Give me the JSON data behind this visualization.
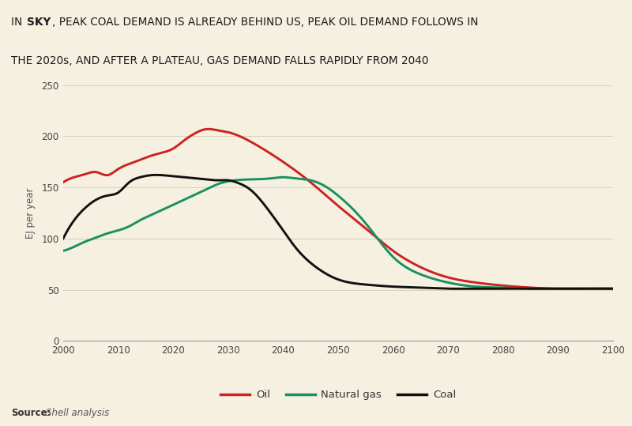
{
  "ylabel": "EJ per year",
  "source_bold": "Source:",
  "source_rest": " Shell analysis",
  "background_color": "#f5f0e0",
  "title_bg_color": "#f0d000",
  "title_text_color": "#1a1a1a",
  "oil_color": "#cc2222",
  "gas_color": "#1a9060",
  "coal_color": "#111111",
  "xlim": [
    2000,
    2100
  ],
  "ylim": [
    0,
    250
  ],
  "yticks": [
    0,
    50,
    100,
    150,
    200,
    250
  ],
  "xticks": [
    2000,
    2010,
    2020,
    2030,
    2040,
    2050,
    2060,
    2070,
    2080,
    2090,
    2100
  ],
  "oil_x": [
    2000,
    2002,
    2004,
    2006,
    2008,
    2010,
    2012,
    2014,
    2016,
    2018,
    2020,
    2022,
    2024,
    2026,
    2028,
    2030,
    2035,
    2040,
    2045,
    2050,
    2055,
    2060,
    2065,
    2070,
    2075,
    2080,
    2085,
    2090,
    2095,
    2100
  ],
  "oil_y": [
    155,
    160,
    163,
    165,
    162,
    168,
    173,
    177,
    181,
    184,
    188,
    196,
    203,
    207,
    206,
    204,
    192,
    175,
    155,
    132,
    110,
    88,
    72,
    62,
    57,
    54,
    52,
    51,
    51,
    51
  ],
  "gas_x": [
    2000,
    2002,
    2004,
    2006,
    2008,
    2010,
    2012,
    2014,
    2016,
    2018,
    2020,
    2022,
    2024,
    2026,
    2028,
    2030,
    2035,
    2038,
    2040,
    2042,
    2045,
    2048,
    2050,
    2055,
    2060,
    2065,
    2070,
    2075,
    2080,
    2085,
    2090,
    2095,
    2100
  ],
  "gas_y": [
    88,
    92,
    97,
    101,
    105,
    108,
    112,
    118,
    123,
    128,
    133,
    138,
    143,
    148,
    153,
    156,
    158,
    159,
    160,
    159,
    157,
    150,
    142,
    115,
    82,
    65,
    57,
    53,
    52,
    51,
    51,
    51,
    51
  ],
  "coal_x": [
    2000,
    2002,
    2004,
    2006,
    2008,
    2010,
    2012,
    2014,
    2016,
    2018,
    2020,
    2022,
    2024,
    2026,
    2028,
    2030,
    2032,
    2034,
    2036,
    2038,
    2040,
    2042,
    2044,
    2046,
    2048,
    2050,
    2055,
    2060,
    2065,
    2070,
    2075,
    2080,
    2085,
    2090,
    2095,
    2100
  ],
  "coal_y": [
    100,
    118,
    130,
    138,
    142,
    145,
    155,
    160,
    162,
    162,
    161,
    160,
    159,
    158,
    157,
    157,
    154,
    148,
    137,
    123,
    108,
    93,
    81,
    72,
    65,
    60,
    55,
    53,
    52,
    51,
    51,
    51,
    51,
    51,
    51,
    51
  ]
}
